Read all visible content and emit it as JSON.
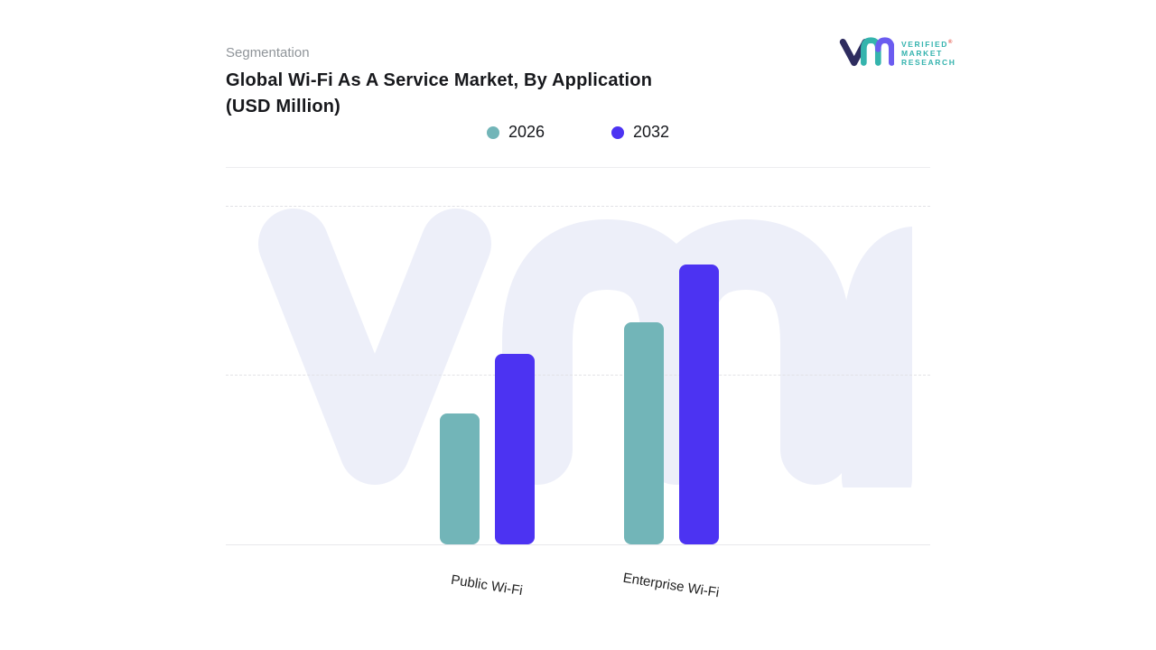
{
  "header": {
    "eyebrow": "Segmentation",
    "title_line1": "Global Wi-Fi As A Service Market, By Application",
    "title_line2": "(USD Million)"
  },
  "logo": {
    "line1": "VERIFIED",
    "line2": "MARKET",
    "line3": "RESEARCH",
    "registered": "®",
    "mark_colors": {
      "v": "#2e2c5f",
      "m": "#35b4ad",
      "r": "#6b5cf0"
    },
    "text_color": "#35b3ae"
  },
  "legend": [
    {
      "label": "2026",
      "color": "#72b5b8"
    },
    {
      "label": "2032",
      "color": "#4c33f2"
    }
  ],
  "chart_data": {
    "type": "bar",
    "title": "Global Wi-Fi As A Service Market, By Application (USD Million)",
    "categories": [
      "Public Wi-Fi",
      "Enterprise Wi-Fi"
    ],
    "series": [
      {
        "name": "2026",
        "color": "#72b5b8",
        "values": [
          145,
          246
        ]
      },
      {
        "name": "2032",
        "color": "#4c33f2",
        "values": [
          211,
          310
        ]
      }
    ],
    "xlabel": "",
    "ylabel": "",
    "ylim": [
      0,
      375
    ],
    "grid": "horizontal dashed, no y-axis tick labels",
    "legend_position": "top-center",
    "note": "values estimated from bar pixel heights; no numeric axis shown"
  }
}
